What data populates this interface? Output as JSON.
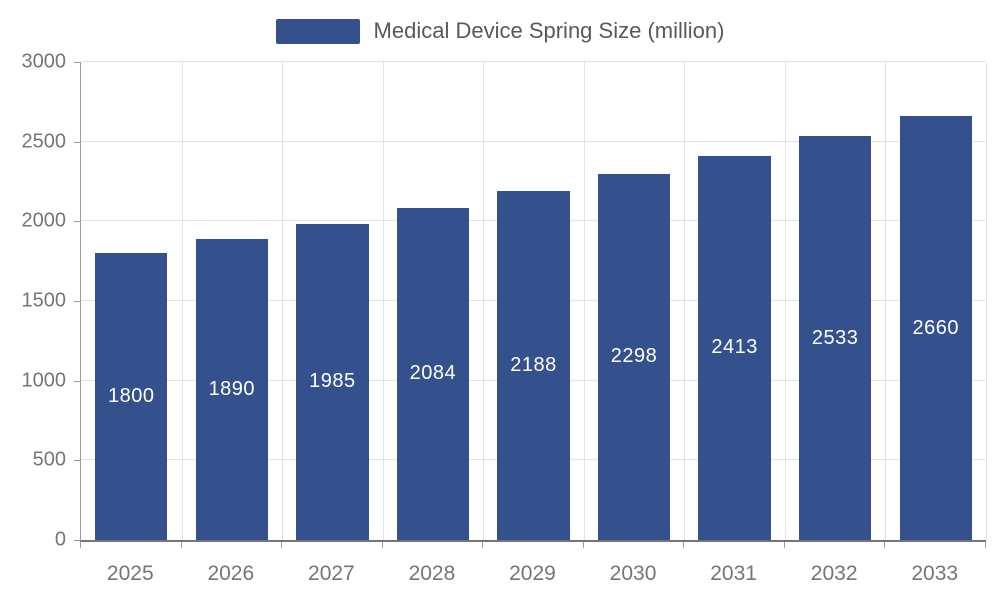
{
  "chart_data": {
    "type": "bar",
    "title": "Medical Device Spring Size (million)",
    "categories": [
      "2025",
      "2026",
      "2027",
      "2028",
      "2029",
      "2030",
      "2031",
      "2032",
      "2033"
    ],
    "values": [
      1800,
      1890,
      1985,
      2084,
      2188,
      2298,
      2413,
      2533,
      2660
    ],
    "series": [
      {
        "name": "Medical Device Spring Size (million)",
        "values": [
          1800,
          1890,
          1985,
          2084,
          2188,
          2298,
          2413,
          2533,
          2660
        ]
      }
    ],
    "xlabel": "",
    "ylabel": "",
    "ylim": [
      0,
      3000
    ],
    "ytick_step": 500,
    "ytick_labels": [
      "0",
      "500",
      "1000",
      "1500",
      "2000",
      "2500",
      "3000"
    ],
    "grid": true,
    "legend_position": "top",
    "value_labels_inside_bars": true,
    "colors": {
      "bar": "#34518e",
      "bar_value_label": "#ffffff",
      "grid_line": "#e3e3e3",
      "axis_line": "#9a9a9a",
      "tick_label": "#757575",
      "legend_text": "#595959",
      "background": "#ffffff"
    }
  }
}
